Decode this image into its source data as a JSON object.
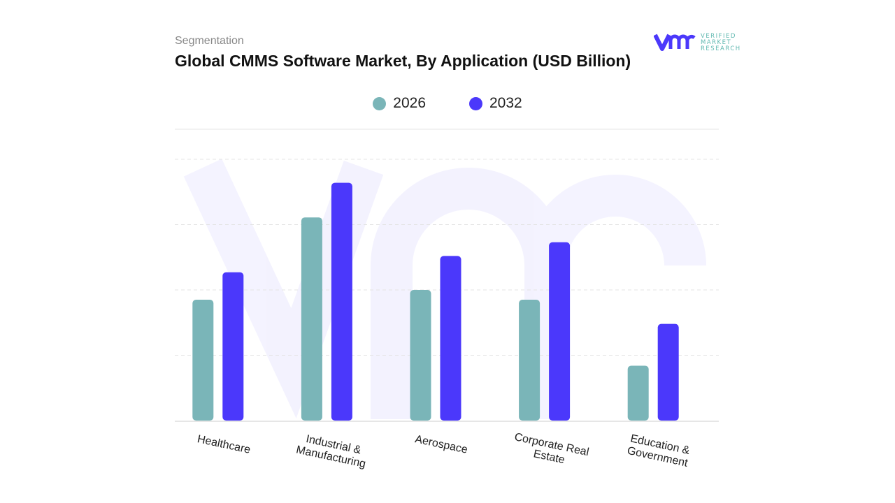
{
  "header": {
    "segment_label": "Segmentation",
    "logo_text": "VERIFIED MARKET RESEARCH"
  },
  "chart_data": {
    "type": "bar",
    "title": "Global CMMS Software Market, By Application (USD Billion)",
    "categories": [
      "Healthcare",
      "Industrial & Manufacturing",
      "Aerospace",
      "Corporate Real Estate",
      "Education & Government"
    ],
    "series": [
      {
        "name": "2026",
        "color": "#7ab5b8",
        "values": [
          1.85,
          3.11,
          2.0,
          1.85,
          0.84
        ]
      },
      {
        "name": "2032",
        "color": "#4b38fb",
        "values": [
          2.27,
          3.64,
          2.52,
          2.73,
          1.48
        ]
      }
    ],
    "xlabel": "",
    "ylabel": "",
    "ylim": [
      0,
      4
    ],
    "grid": true,
    "legend": "top-center",
    "y_tick_labels_shown": false
  }
}
